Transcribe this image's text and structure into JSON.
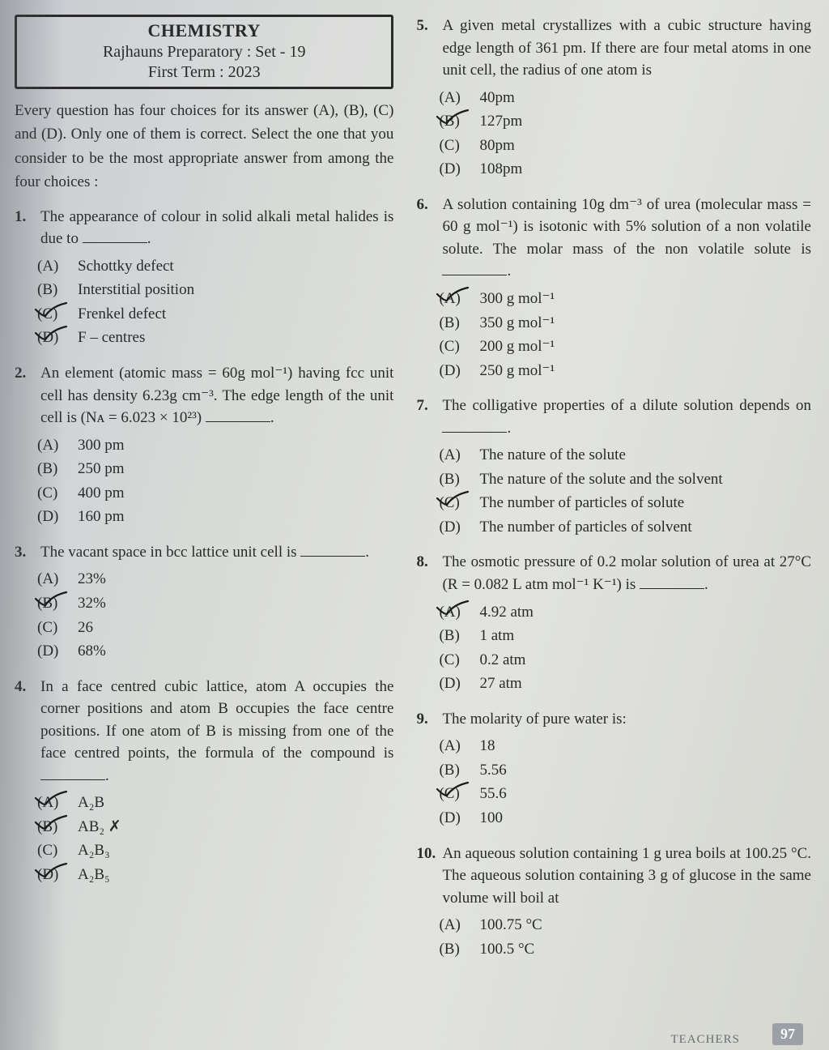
{
  "header": {
    "title": "CHEMISTRY",
    "subtitle1": "Rajhauns Preparatory : Set - 19",
    "subtitle2": "First Term : 2023"
  },
  "instructions": "Every question has four choices for its answer (A), (B), (C) and (D). Only one of them is correct. Select the one that you consider to be the most appropriate answer from among the four choices :",
  "page_number": "97",
  "footer_fragment": "TEACHERS",
  "left": [
    {
      "num": "1.",
      "text": "The appearance of colour in solid alkali metal halides is due to ________.",
      "choices": [
        {
          "lbl": "(A)",
          "val": "Schottky defect"
        },
        {
          "lbl": "(B)",
          "val": "Interstitial position"
        },
        {
          "lbl": "(C)",
          "val": "Frenkel defect",
          "marked": true
        },
        {
          "lbl": "(D)",
          "val": "F – centres",
          "marked": true
        }
      ]
    },
    {
      "num": "2.",
      "text": "An element (atomic mass = 60g mol⁻¹) having fcc unit cell has density 6.23g cm⁻³. The edge length of the unit cell is (Nᴀ = 6.023 × 10²³) ________.",
      "choices": [
        {
          "lbl": "(A)",
          "val": "300 pm"
        },
        {
          "lbl": "(B)",
          "val": "250 pm"
        },
        {
          "lbl": "(C)",
          "val": "400 pm"
        },
        {
          "lbl": "(D)",
          "val": "160 pm"
        }
      ]
    },
    {
      "num": "3.",
      "text": "The vacant space in bcc lattice unit cell is ________.",
      "choices": [
        {
          "lbl": "(A)",
          "val": "23%"
        },
        {
          "lbl": "(B)",
          "val": "32%",
          "marked": true
        },
        {
          "lbl": "(C)",
          "val": "26"
        },
        {
          "lbl": "(D)",
          "val": "68%"
        }
      ]
    },
    {
      "num": "4.",
      "text": "In a face centred cubic lattice, atom A occupies the corner positions and atom B occupies the face centre positions. If one atom of B is missing from one of the face centred points, the formula of the compound is ________.",
      "choices": [
        {
          "lbl": "(A)",
          "val": "A₂B",
          "marked": true
        },
        {
          "lbl": "(B)",
          "val": "AB₂ ✗",
          "marked": true
        },
        {
          "lbl": "(C)",
          "val": "A₂B₃"
        },
        {
          "lbl": "(D)",
          "val": "A₂B₅",
          "marked": true
        }
      ]
    }
  ],
  "right": [
    {
      "num": "5.",
      "text": "A given metal crystallizes with a cubic structure having edge length of 361 pm. If there are four metal atoms in one unit cell, the radius of one atom is",
      "choices": [
        {
          "lbl": "(A)",
          "val": "40pm"
        },
        {
          "lbl": "(B)",
          "val": "127pm",
          "marked": true
        },
        {
          "lbl": "(C)",
          "val": "80pm"
        },
        {
          "lbl": "(D)",
          "val": "108pm"
        }
      ]
    },
    {
      "num": "6.",
      "text": "A solution containing 10g dm⁻³ of urea (molecular mass = 60 g mol⁻¹) is isotonic with 5% solution of a non volatile solute. The molar mass of the non volatile solute is ________.",
      "choices": [
        {
          "lbl": "(A)",
          "val": "300 g mol⁻¹",
          "marked": true
        },
        {
          "lbl": "(B)",
          "val": "350 g mol⁻¹"
        },
        {
          "lbl": "(C)",
          "val": "200 g mol⁻¹"
        },
        {
          "lbl": "(D)",
          "val": "250 g mol⁻¹"
        }
      ]
    },
    {
      "num": "7.",
      "text": "The colligative properties of a dilute solution depends on ________.",
      "choices": [
        {
          "lbl": "(A)",
          "val": "The nature of the solute"
        },
        {
          "lbl": "(B)",
          "val": "The nature of the solute and the solvent"
        },
        {
          "lbl": "(C)",
          "val": "The number of particles of solute",
          "marked": true
        },
        {
          "lbl": "(D)",
          "val": "The number of particles of solvent"
        }
      ]
    },
    {
      "num": "8.",
      "text": "The osmotic pressure of 0.2 molar solution of urea at 27°C (R = 0.082 L atm mol⁻¹ K⁻¹) is ________.",
      "choices": [
        {
          "lbl": "(A)",
          "val": "4.92 atm",
          "marked": true
        },
        {
          "lbl": "(B)",
          "val": "1 atm"
        },
        {
          "lbl": "(C)",
          "val": "0.2 atm"
        },
        {
          "lbl": "(D)",
          "val": "27 atm"
        }
      ]
    },
    {
      "num": "9.",
      "text": "The molarity of pure water is:",
      "choices": [
        {
          "lbl": "(A)",
          "val": "18"
        },
        {
          "lbl": "(B)",
          "val": "5.56"
        },
        {
          "lbl": "(C)",
          "val": "55.6",
          "marked": true
        },
        {
          "lbl": "(D)",
          "val": "100"
        }
      ]
    },
    {
      "num": "10.",
      "text": "An aqueous solution containing 1 g urea boils at 100.25 °C. The aqueous solution containing 3 g of glucose in the same volume will boil at",
      "choices": [
        {
          "lbl": "(A)",
          "val": "100.75 °C"
        },
        {
          "lbl": "(B)",
          "val": "100.5 °C"
        }
      ]
    }
  ]
}
